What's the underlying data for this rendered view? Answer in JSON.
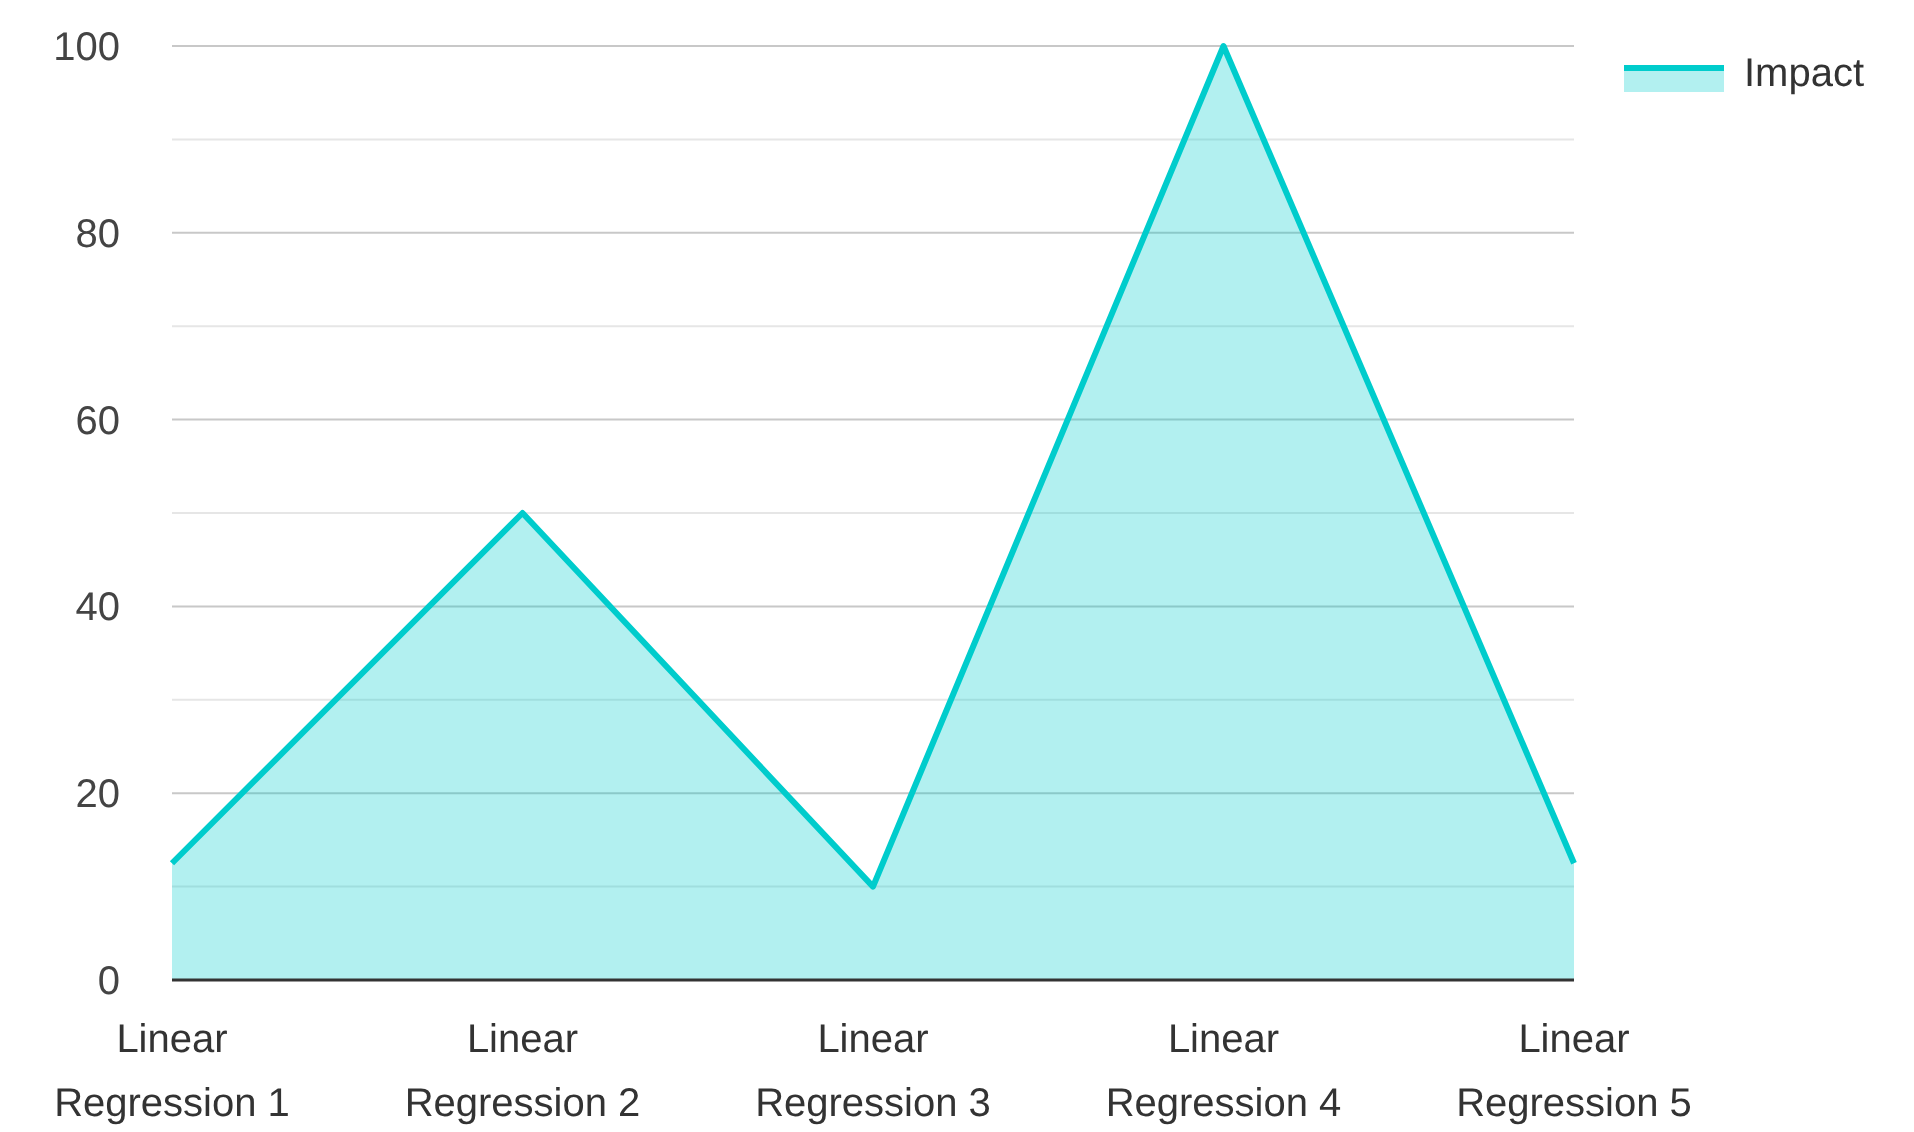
{
  "chart_data": {
    "type": "area",
    "categories": [
      "Linear Regression 1",
      "Linear Regression 2",
      "Linear Regression 3",
      "Linear Regression 4",
      "Linear Regression 5"
    ],
    "series": [
      {
        "name": "Impact",
        "color": "#00cccc",
        "values": [
          12.5,
          50,
          10,
          100,
          12.5
        ]
      }
    ],
    "ylim": [
      0,
      100
    ],
    "yticks": [
      0,
      {
        "value": 10,
        "label": null
      },
      20,
      {
        "value": 30,
        "label": null
      },
      40,
      {
        "value": 50,
        "label": null
      },
      60,
      {
        "value": 70,
        "label": null
      },
      80,
      {
        "value": 90,
        "label": null
      },
      100
    ],
    "grid": "y",
    "legend": "top right"
  }
}
